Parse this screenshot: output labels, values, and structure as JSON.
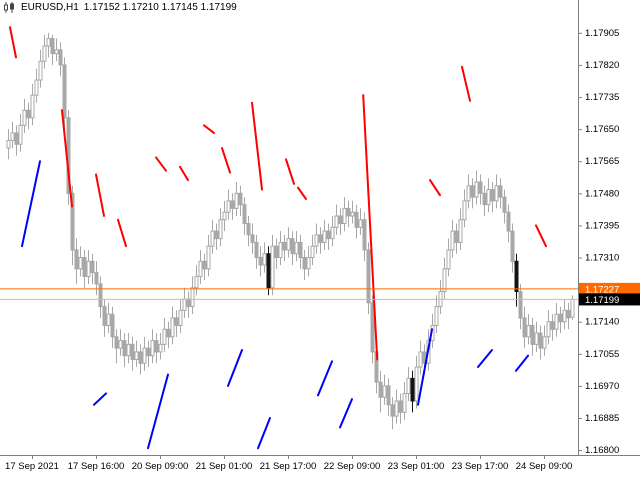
{
  "header": {
    "symbol_period": "EURUSD,H1",
    "ohlc_text": "1.17152 1.17210 1.17145 1.17199"
  },
  "chart_data": {
    "type": "candlestick",
    "title": "EURUSD H1 candlestick chart with red/blue trend segment indicator",
    "symbol": "EURUSD",
    "timeframe": "H1",
    "current_bar": {
      "open": "1.17152",
      "high": "1.17210",
      "low": "1.17145",
      "close": "1.17199"
    },
    "colors": {
      "background": "#ffffff",
      "candle_outline": "#a8a8a8",
      "candle_bull_fill": "#ffffff",
      "candle_bear_fill": "#a8a8a8",
      "candle_dark": "#141414",
      "segment_down": "#ff0000",
      "segment_up": "#0000ff",
      "orange_line": "#ff6a00",
      "current_price_line": "#bdbdbd",
      "bid_label_bg": "#000000",
      "axis_line": "#808080",
      "axis_text": "#000000"
    },
    "y_axis": {
      "price_top": 1.17992,
      "price_bottom": 1.16787,
      "ticks": [
        "1.17905",
        "1.17820",
        "1.17735",
        "1.17650",
        "1.17565",
        "1.17480",
        "1.17395",
        "1.17310",
        "1.17140",
        "1.17055",
        "1.16970",
        "1.16885",
        "1.16800"
      ]
    },
    "x_axis": {
      "ticks": [
        {
          "index": 6,
          "label": "17 Sep 2021"
        },
        {
          "index": 22,
          "label": "17 Sep 16:00"
        },
        {
          "index": 38,
          "label": "20 Sep 09:00"
        },
        {
          "index": 54,
          "label": "21 Sep 01:00"
        },
        {
          "index": 70,
          "label": "21 Sep 17:00"
        },
        {
          "index": 86,
          "label": "22 Sep 09:00"
        },
        {
          "index": 102,
          "label": "23 Sep 01:00"
        },
        {
          "index": 118,
          "label": "23 Sep 17:00"
        },
        {
          "index": 134,
          "label": "24 Sep 09:00"
        }
      ]
    },
    "lines": [
      {
        "name": "orange-level-line",
        "price": 1.17227,
        "label": "1.17227",
        "color": "#ff6a00",
        "label_bg": "#ff6a00"
      },
      {
        "name": "bid-price-line",
        "price": 1.17199,
        "label": "1.17199",
        "color": "#bdbdbd",
        "label_bg": "#000000"
      }
    ],
    "segments": [
      {
        "dir": "down",
        "i1": 0.5,
        "p1": 1.1792,
        "i2": 2.0,
        "p2": 1.1784
      },
      {
        "dir": "down",
        "i1": 13.5,
        "p1": 1.177,
        "i2": 16.0,
        "p2": 1.17445
      },
      {
        "dir": "down",
        "i1": 22.0,
        "p1": 1.1753,
        "i2": 24.0,
        "p2": 1.1742
      },
      {
        "dir": "down",
        "i1": 27.5,
        "p1": 1.1741,
        "i2": 29.5,
        "p2": 1.1734
      },
      {
        "dir": "down",
        "i1": 37.0,
        "p1": 1.17575,
        "i2": 39.5,
        "p2": 1.1754
      },
      {
        "dir": "down",
        "i1": 43.0,
        "p1": 1.1755,
        "i2": 45.0,
        "p2": 1.17515
      },
      {
        "dir": "down",
        "i1": 49.0,
        "p1": 1.1766,
        "i2": 51.5,
        "p2": 1.1764
      },
      {
        "dir": "down",
        "i1": 53.5,
        "p1": 1.176,
        "i2": 55.5,
        "p2": 1.17535
      },
      {
        "dir": "down",
        "i1": 61.0,
        "p1": 1.1772,
        "i2": 63.5,
        "p2": 1.1749
      },
      {
        "dir": "down",
        "i1": 69.5,
        "p1": 1.1757,
        "i2": 71.5,
        "p2": 1.17505
      },
      {
        "dir": "down",
        "i1": 72.5,
        "p1": 1.17495,
        "i2": 74.5,
        "p2": 1.17465
      },
      {
        "dir": "down",
        "i1": 88.8,
        "p1": 1.1774,
        "i2": 92.3,
        "p2": 1.1704
      },
      {
        "dir": "down",
        "i1": 105.5,
        "p1": 1.17515,
        "i2": 108.0,
        "p2": 1.17475
      },
      {
        "dir": "down",
        "i1": 113.5,
        "p1": 1.17815,
        "i2": 115.5,
        "p2": 1.17725
      },
      {
        "dir": "down",
        "i1": 132.0,
        "p1": 1.17395,
        "i2": 134.5,
        "p2": 1.1734
      },
      {
        "dir": "up",
        "i1": 3.5,
        "p1": 1.1734,
        "i2": 8.0,
        "p2": 1.17565
      },
      {
        "dir": "up",
        "i1": 21.5,
        "p1": 1.1692,
        "i2": 24.5,
        "p2": 1.1695
      },
      {
        "dir": "up",
        "i1": 35.0,
        "p1": 1.16805,
        "i2": 40.0,
        "p2": 1.17
      },
      {
        "dir": "up",
        "i1": 55.0,
        "p1": 1.1697,
        "i2": 58.5,
        "p2": 1.17065
      },
      {
        "dir": "up",
        "i1": 62.5,
        "p1": 1.16805,
        "i2": 65.5,
        "p2": 1.16885
      },
      {
        "dir": "up",
        "i1": 77.5,
        "p1": 1.16945,
        "i2": 81.0,
        "p2": 1.17035
      },
      {
        "dir": "up",
        "i1": 83.0,
        "p1": 1.1686,
        "i2": 86.0,
        "p2": 1.16935
      },
      {
        "dir": "up",
        "i1": 102.5,
        "p1": 1.1692,
        "i2": 106.0,
        "p2": 1.1712
      },
      {
        "dir": "up",
        "i1": 117.5,
        "p1": 1.1702,
        "i2": 121.0,
        "p2": 1.17065
      },
      {
        "dir": "up",
        "i1": 127.0,
        "p1": 1.1701,
        "i2": 130.0,
        "p2": 1.1705
      }
    ],
    "candles": [
      [
        1.176,
        1.1765,
        1.1757,
        1.1762
      ],
      [
        1.1762,
        1.1767,
        1.176,
        1.1764
      ],
      [
        1.1764,
        1.1766,
        1.1758,
        1.1761
      ],
      [
        1.1761,
        1.1769,
        1.1759,
        1.1766
      ],
      [
        1.1766,
        1.1773,
        1.1764,
        1.177
      ],
      [
        1.177,
        1.1772,
        1.1765,
        1.1768
      ],
      [
        1.1768,
        1.1777,
        1.1766,
        1.1774
      ],
      [
        1.1774,
        1.1781,
        1.1772,
        1.1778
      ],
      [
        1.1778,
        1.1786,
        1.1776,
        1.1783
      ],
      [
        1.1783,
        1.179,
        1.1781,
        1.1787
      ],
      [
        1.1787,
        1.17905,
        1.1784,
        1.1789
      ],
      [
        1.1789,
        1.179,
        1.1782,
        1.1785
      ],
      [
        1.1785,
        1.1789,
        1.1783,
        1.1786
      ],
      [
        1.1786,
        1.1788,
        1.1779,
        1.1782
      ],
      [
        1.1782,
        1.1784,
        1.1765,
        1.1768
      ],
      [
        1.1768,
        1.177,
        1.1745,
        1.1748
      ],
      [
        1.1748,
        1.175,
        1.1729,
        1.1733
      ],
      [
        1.1733,
        1.1736,
        1.1724,
        1.1728
      ],
      [
        1.1728,
        1.1734,
        1.1726,
        1.1731
      ],
      [
        1.1731,
        1.1733,
        1.1723,
        1.1726
      ],
      [
        1.1726,
        1.1733,
        1.1724,
        1.173
      ],
      [
        1.173,
        1.1732,
        1.1724,
        1.1727
      ],
      [
        1.1727,
        1.173,
        1.1721,
        1.1724
      ],
      [
        1.1724,
        1.1726,
        1.1715,
        1.1718
      ],
      [
        1.1718,
        1.172,
        1.171,
        1.1713
      ],
      [
        1.1713,
        1.1719,
        1.1711,
        1.1716
      ],
      [
        1.1716,
        1.1718,
        1.1707,
        1.171
      ],
      [
        1.171,
        1.1712,
        1.1703,
        1.1707
      ],
      [
        1.1707,
        1.1712,
        1.1705,
        1.1709
      ],
      [
        1.1709,
        1.1711,
        1.1702,
        1.1705
      ],
      [
        1.1705,
        1.1711,
        1.1703,
        1.1708
      ],
      [
        1.1708,
        1.171,
        1.1701,
        1.1704
      ],
      [
        1.1704,
        1.1709,
        1.1702,
        1.1706
      ],
      [
        1.1706,
        1.1708,
        1.17,
        1.1703
      ],
      [
        1.1703,
        1.171,
        1.1701,
        1.1707
      ],
      [
        1.1707,
        1.1709,
        1.1702,
        1.1705
      ],
      [
        1.1705,
        1.1712,
        1.1703,
        1.1709
      ],
      [
        1.1709,
        1.1711,
        1.1703,
        1.1706
      ],
      [
        1.1706,
        1.1711,
        1.1704,
        1.1708
      ],
      [
        1.1708,
        1.1715,
        1.1706,
        1.1712
      ],
      [
        1.1712,
        1.1714,
        1.1707,
        1.171
      ],
      [
        1.171,
        1.1718,
        1.1708,
        1.1715
      ],
      [
        1.1715,
        1.1717,
        1.171,
        1.1713
      ],
      [
        1.1713,
        1.172,
        1.1711,
        1.1717
      ],
      [
        1.1717,
        1.1723,
        1.1715,
        1.172
      ],
      [
        1.172,
        1.1722,
        1.1715,
        1.1718
      ],
      [
        1.1718,
        1.1726,
        1.1716,
        1.1723
      ],
      [
        1.1723,
        1.1729,
        1.1721,
        1.1726
      ],
      [
        1.1726,
        1.1733,
        1.1724,
        1.173
      ],
      [
        1.173,
        1.1732,
        1.1725,
        1.1728
      ],
      [
        1.1728,
        1.1737,
        1.1726,
        1.1734
      ],
      [
        1.1734,
        1.1741,
        1.1732,
        1.1738
      ],
      [
        1.1738,
        1.174,
        1.1733,
        1.1736
      ],
      [
        1.1736,
        1.1744,
        1.1734,
        1.1741
      ],
      [
        1.1741,
        1.1746,
        1.1738,
        1.1743
      ],
      [
        1.1743,
        1.1749,
        1.1741,
        1.1746
      ],
      [
        1.1746,
        1.1748,
        1.1741,
        1.1744
      ],
      [
        1.1744,
        1.1751,
        1.1742,
        1.1748
      ],
      [
        1.1748,
        1.175,
        1.1742,
        1.1745
      ],
      [
        1.1745,
        1.1747,
        1.1737,
        1.174
      ],
      [
        1.174,
        1.1742,
        1.1734,
        1.1737
      ],
      [
        1.1737,
        1.174,
        1.1732,
        1.1735
      ],
      [
        1.1735,
        1.1737,
        1.1728,
        1.1731
      ],
      [
        1.1731,
        1.1734,
        1.1726,
        1.1729
      ],
      [
        1.1729,
        1.1735,
        1.1727,
        1.1732
      ],
      [
        1.1732,
        1.1734,
        1.1721,
        1.1723,
        1
      ],
      [
        1.1723,
        1.1737,
        1.1721,
        1.1734
      ],
      [
        1.1734,
        1.1736,
        1.1728,
        1.1731
      ],
      [
        1.1731,
        1.1738,
        1.1729,
        1.1735
      ],
      [
        1.1735,
        1.1737,
        1.173,
        1.1733
      ],
      [
        1.1733,
        1.1739,
        1.1731,
        1.1736
      ],
      [
        1.1736,
        1.1738,
        1.1729,
        1.1732
      ],
      [
        1.1732,
        1.1738,
        1.173,
        1.1735
      ],
      [
        1.1735,
        1.1737,
        1.1728,
        1.1731
      ],
      [
        1.1731,
        1.1733,
        1.1725,
        1.1728
      ],
      [
        1.1728,
        1.1734,
        1.1726,
        1.1731
      ],
      [
        1.1731,
        1.1737,
        1.1729,
        1.1734
      ],
      [
        1.1734,
        1.174,
        1.1732,
        1.1737
      ],
      [
        1.1737,
        1.1739,
        1.1732,
        1.1735
      ],
      [
        1.1735,
        1.1741,
        1.1733,
        1.1738
      ],
      [
        1.1738,
        1.174,
        1.1733,
        1.1736
      ],
      [
        1.1736,
        1.1742,
        1.1734,
        1.1739
      ],
      [
        1.1739,
        1.1745,
        1.1737,
        1.1742
      ],
      [
        1.1742,
        1.1744,
        1.1737,
        1.174
      ],
      [
        1.174,
        1.1747,
        1.1738,
        1.1744
      ],
      [
        1.1744,
        1.1746,
        1.1739,
        1.1742
      ],
      [
        1.1742,
        1.1746,
        1.174,
        1.1743
      ],
      [
        1.1743,
        1.1745,
        1.1736,
        1.1739
      ],
      [
        1.1739,
        1.1744,
        1.1737,
        1.1741
      ],
      [
        1.1741,
        1.1743,
        1.173,
        1.1733
      ],
      [
        1.1733,
        1.1735,
        1.1716,
        1.1719
      ],
      [
        1.1719,
        1.1721,
        1.1703,
        1.1706
      ],
      [
        1.1706,
        1.1708,
        1.1695,
        1.1698
      ],
      [
        1.1698,
        1.1701,
        1.169,
        1.1694
      ],
      [
        1.1694,
        1.17,
        1.1692,
        1.1697
      ],
      [
        1.1697,
        1.1699,
        1.1689,
        1.1692
      ],
      [
        1.1692,
        1.1694,
        1.16855,
        1.1689
      ],
      [
        1.1689,
        1.1696,
        1.1687,
        1.1693
      ],
      [
        1.1693,
        1.1695,
        1.1687,
        1.169
      ],
      [
        1.169,
        1.1698,
        1.1688,
        1.1695
      ],
      [
        1.1695,
        1.1702,
        1.1693,
        1.1699
      ],
      [
        1.1699,
        1.1701,
        1.169,
        1.1693,
        1
      ],
      [
        1.1693,
        1.1705,
        1.1691,
        1.1702
      ],
      [
        1.1702,
        1.1709,
        1.17,
        1.1706
      ],
      [
        1.1706,
        1.1708,
        1.17,
        1.1703
      ],
      [
        1.1703,
        1.1712,
        1.1701,
        1.1709
      ],
      [
        1.1709,
        1.1716,
        1.1707,
        1.1713
      ],
      [
        1.1713,
        1.1721,
        1.1711,
        1.1718
      ],
      [
        1.1718,
        1.1725,
        1.1716,
        1.1722
      ],
      [
        1.1722,
        1.1731,
        1.172,
        1.1728
      ],
      [
        1.1728,
        1.1736,
        1.1726,
        1.1733
      ],
      [
        1.1733,
        1.1741,
        1.1731,
        1.1738
      ],
      [
        1.1738,
        1.174,
        1.1732,
        1.1735
      ],
      [
        1.1735,
        1.1744,
        1.1733,
        1.1741
      ],
      [
        1.1741,
        1.1749,
        1.1739,
        1.1746
      ],
      [
        1.1746,
        1.1753,
        1.1744,
        1.175
      ],
      [
        1.175,
        1.1752,
        1.1744,
        1.1747
      ],
      [
        1.1747,
        1.1754,
        1.1745,
        1.1751
      ],
      [
        1.1751,
        1.1753,
        1.1745,
        1.1748
      ],
      [
        1.1748,
        1.175,
        1.1742,
        1.1745
      ],
      [
        1.1745,
        1.1752,
        1.1743,
        1.1749
      ],
      [
        1.1749,
        1.1751,
        1.1743,
        1.1746
      ],
      [
        1.1746,
        1.1753,
        1.1744,
        1.175
      ],
      [
        1.175,
        1.1752,
        1.1744,
        1.1747
      ],
      [
        1.1747,
        1.1749,
        1.174,
        1.1743
      ],
      [
        1.1743,
        1.1745,
        1.1735,
        1.1738
      ],
      [
        1.1738,
        1.174,
        1.1727,
        1.173
      ],
      [
        1.173,
        1.1732,
        1.1718,
        1.1722,
        1
      ],
      [
        1.1722,
        1.1724,
        1.1712,
        1.1715
      ],
      [
        1.1715,
        1.1718,
        1.1707,
        1.171
      ],
      [
        1.171,
        1.1716,
        1.1708,
        1.1713
      ],
      [
        1.1713,
        1.1715,
        1.1705,
        1.1708
      ],
      [
        1.1708,
        1.1714,
        1.1706,
        1.1711
      ],
      [
        1.1711,
        1.1713,
        1.1704,
        1.1707
      ],
      [
        1.1707,
        1.1713,
        1.1705,
        1.171
      ],
      [
        1.171,
        1.1717,
        1.1708,
        1.1714
      ],
      [
        1.1714,
        1.1716,
        1.1709,
        1.1712
      ],
      [
        1.1712,
        1.1719,
        1.171,
        1.1716
      ],
      [
        1.1716,
        1.1718,
        1.1711,
        1.1714
      ],
      [
        1.1714,
        1.172,
        1.1712,
        1.1717
      ],
      [
        1.1717,
        1.1719,
        1.1712,
        1.1715
      ],
      [
        1.17152,
        1.1721,
        1.17145,
        1.17199
      ]
    ]
  }
}
